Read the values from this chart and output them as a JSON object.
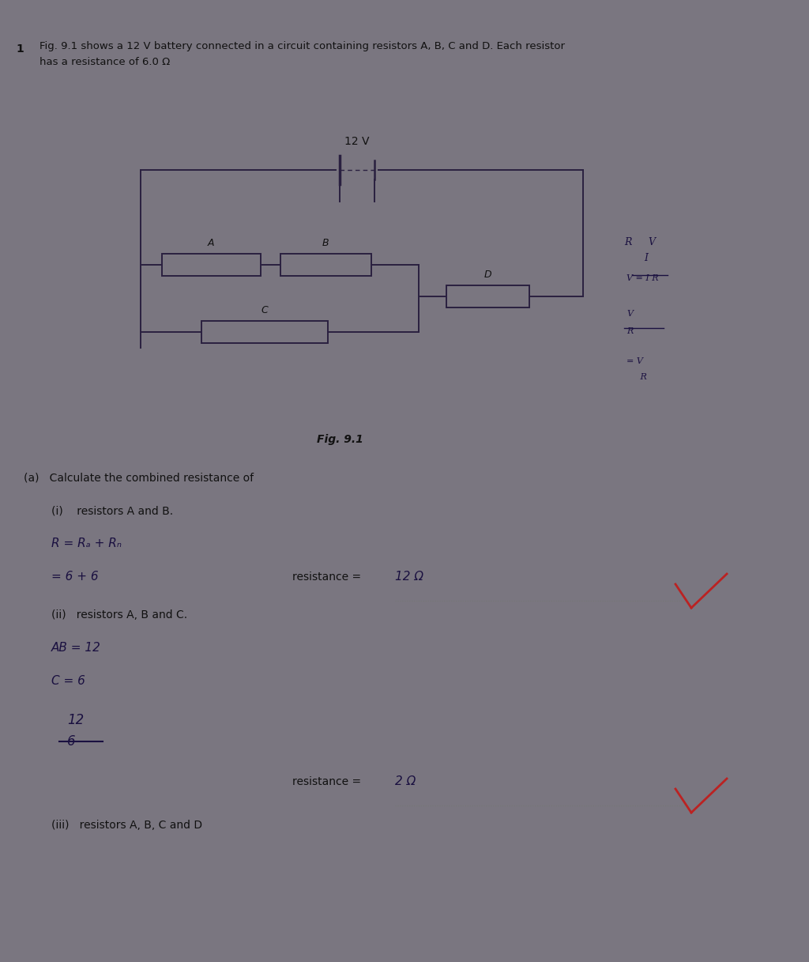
{
  "bg_color": "#7a7680",
  "fig_width": 10.24,
  "fig_height": 12.17,
  "question_number": "1",
  "intro_line1": "Fig. 9.1 shows a 12 V battery connected in a circuit containing resistors A, B, C and D. Each resistor",
  "intro_line2": "has a resistance of 6.0 Ω",
  "circuit_label": "12 V",
  "fig_label": "Fig. 9.1",
  "part_a_text": "(a)   Calculate the combined resistance of",
  "part_i_text": "(i)    resistors A and B.",
  "working_i_line1": "R = Rₐ + Rₙ",
  "working_i_line2": "= 6 + 6",
  "resistance_i_label": "resistance = ",
  "resistance_i_value": "12 Ω",
  "part_ii_text": "(ii)   resistors A, B and C.",
  "working_ii_line1": "AB = 12",
  "working_ii_line2": "C = 6",
  "working_ii_frac_top": "12",
  "working_ii_frac_bot": "6",
  "resistance_ii_label": "resistance = ",
  "resistance_ii_value": "2 Ω",
  "part_iii_text": "(iii)   resistors A, B, C and D",
  "text_color": "#111111",
  "circuit_color": "#2a2040",
  "handwriting_color": "#1a1040",
  "dotted_line_color": "#777777",
  "tick_color": "#bb2222",
  "side_note_color": "#1a1040"
}
